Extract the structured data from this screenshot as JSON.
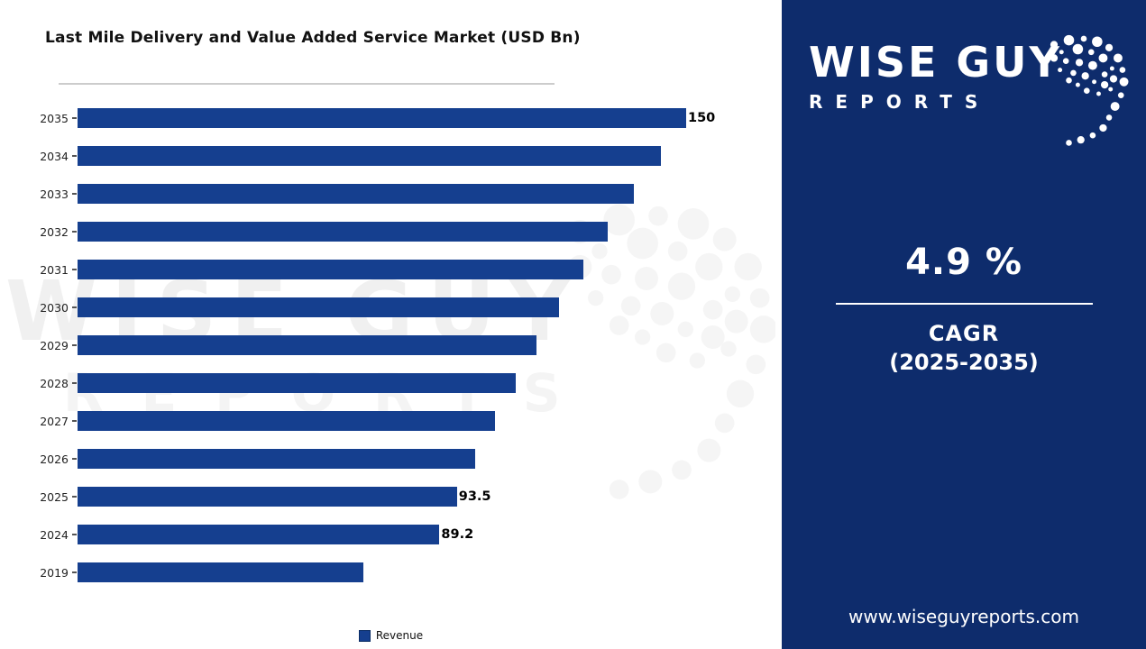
{
  "chart": {
    "title": "Last Mile Delivery and Value Added Service Market (USD Bn)",
    "legend_label": "Revenue",
    "bar_color": "#153f8f",
    "watermark_line1": "WISE GUY",
    "watermark_line2": "REPORTS"
  },
  "chart_data": {
    "type": "bar",
    "orientation": "horizontal",
    "title": "Last Mile Delivery and Value Added Service Market (USD Bn)",
    "ylabel": "",
    "xlabel": "",
    "xlim": [
      0,
      160
    ],
    "legend": [
      "Revenue"
    ],
    "legend_position": "bottom",
    "categories": [
      "2035",
      "2034",
      "2033",
      "2032",
      "2031",
      "2030",
      "2029",
      "2028",
      "2027",
      "2026",
      "2025",
      "2024",
      "2019"
    ],
    "values": [
      150,
      143.8,
      137.1,
      130.7,
      124.6,
      118.7,
      113.2,
      107.9,
      102.9,
      98.1,
      93.5,
      89.2,
      70.4
    ],
    "value_labels": [
      "150",
      "",
      "",
      "",
      "",
      "",
      "",
      "",
      "",
      "",
      "93.5",
      "89.2",
      ""
    ]
  },
  "brand_panel": {
    "logo_line1": "WISE GUY",
    "logo_line2": "REPORTS",
    "cagr_value": "4.9 %",
    "cagr_label": "CAGR",
    "cagr_period": "(2025-2035)",
    "website": "www.wiseguyreports.com",
    "bg_color": "#0e2c6c"
  }
}
